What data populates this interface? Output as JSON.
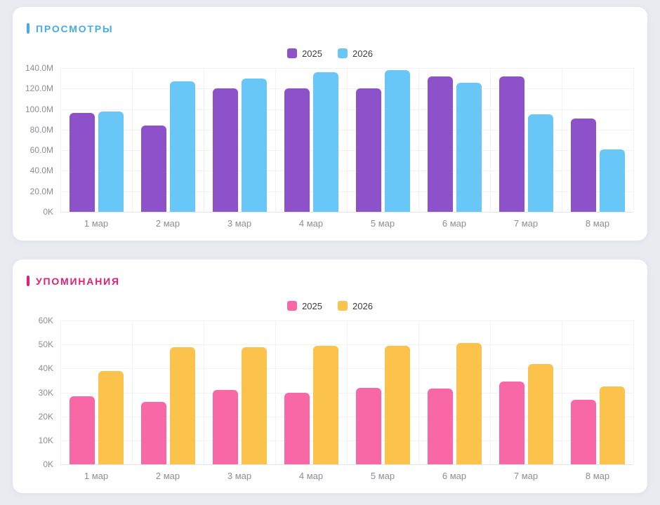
{
  "page": {
    "background_color": "#eaeaf1",
    "card_color": "#ffffff"
  },
  "chart_data": [
    {
      "type": "bar",
      "title": "ПРОСМОТРЫ",
      "accent_color": "#47ace4",
      "legend_position": "top-center",
      "grid": true,
      "categories": [
        "1 мар",
        "2 мар",
        "3 мар",
        "4 мар",
        "5 мар",
        "6 мар",
        "7 мар",
        "8 мар"
      ],
      "series": [
        {
          "name": "2025",
          "color": "#8d52c9",
          "values": [
            96,
            84,
            120,
            120,
            120,
            132,
            132,
            91
          ]
        },
        {
          "name": "2026",
          "color": "#68c7f6",
          "values": [
            98,
            127,
            130,
            136,
            138,
            126,
            95,
            60.5
          ]
        }
      ],
      "value_unit": "millions",
      "ylim": [
        0,
        140
      ],
      "ytick_step": 20,
      "ytick_labels": [
        "140.0M",
        "120.0M",
        "100.0M",
        "80.0M",
        "60.0M",
        "40.0M",
        "20.0M",
        "0K"
      ]
    },
    {
      "type": "bar",
      "title": "УПОМИНАНИЯ",
      "accent_color": "#dd2174",
      "legend_position": "top-center",
      "grid": true,
      "categories": [
        "1 мар",
        "2 мар",
        "3 мар",
        "4 мар",
        "5 мар",
        "6 мар",
        "7 мар",
        "8 мар"
      ],
      "series": [
        {
          "name": "2025",
          "color": "#f968a6",
          "values": [
            28.5,
            26,
            31,
            30,
            32,
            31.5,
            34.5,
            27
          ]
        },
        {
          "name": "2026",
          "color": "#fbc24c",
          "values": [
            39,
            49,
            49,
            49.5,
            49.5,
            50.5,
            42,
            32.5
          ]
        }
      ],
      "value_unit": "thousands",
      "ylim": [
        0,
        60
      ],
      "ytick_step": 10,
      "ytick_labels": [
        "60K",
        "50K",
        "40K",
        "30K",
        "20K",
        "10K",
        "0K"
      ]
    }
  ]
}
